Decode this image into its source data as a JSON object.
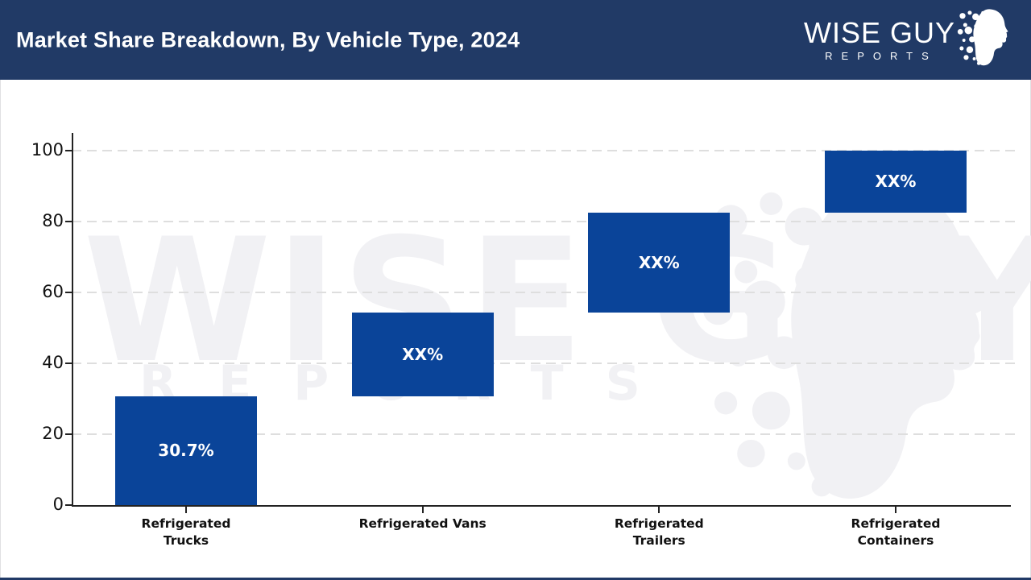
{
  "header": {
    "title": "Market Share Breakdown, By Vehicle Type, 2024",
    "bg_color": "#213a66",
    "logo": {
      "brand": "WISE GUY",
      "sub": "REPORTS"
    }
  },
  "watermark": {
    "line1": "WISE GUY",
    "line2": "REPORTS",
    "color": "#f1f1f4"
  },
  "footer": {
    "bg_color": "#213a66"
  },
  "chart_data": {
    "type": "bar",
    "subtype": "waterfall",
    "title": "Market Share Breakdown, By Vehicle Type, 2024",
    "categories": [
      "Refrigerated Trucks",
      "Refrigerated Vans",
      "Refrigerated Trailers",
      "Refrigerated Containers"
    ],
    "category_label_lines": [
      [
        "Refrigerated",
        "Trucks"
      ],
      [
        "Refrigerated Vans"
      ],
      [
        "Refrigerated",
        "Trailers"
      ],
      [
        "Refrigerated",
        "Containers"
      ]
    ],
    "series": [
      {
        "name": "Market Share (%)",
        "segments": [
          {
            "category": "Refrigerated Trucks",
            "start": 0,
            "end": 30.7,
            "label": "30.7%"
          },
          {
            "category": "Refrigerated Vans",
            "start": 30.7,
            "end": 54.3,
            "label": "XX%"
          },
          {
            "category": "Refrigerated Trailers",
            "start": 54.3,
            "end": 82.3,
            "label": "XX%"
          },
          {
            "category": "Refrigerated Containers",
            "start": 82.3,
            "end": 100,
            "label": "XX%"
          }
        ]
      }
    ],
    "xlabel": "",
    "ylabel": "",
    "ylim": [
      0,
      100
    ],
    "yticks": [
      0,
      20,
      40,
      60,
      80,
      100
    ],
    "grid": "horizontal-dashed",
    "legend": "none",
    "bar_color": "#0a4499",
    "bar_label_color": "#ffffff",
    "gridline_color": "#dedede"
  }
}
